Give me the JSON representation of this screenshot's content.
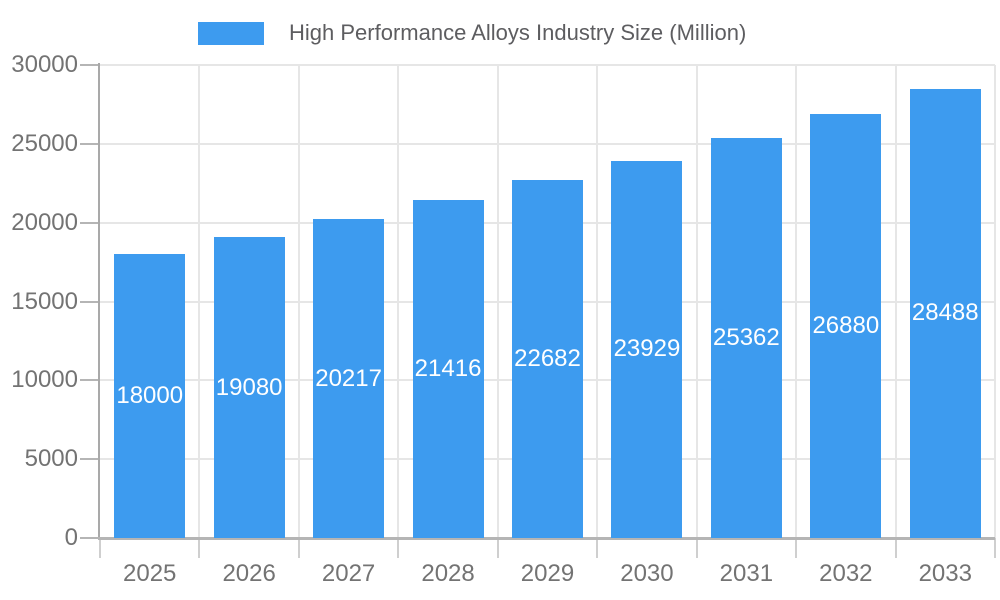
{
  "chart_data": {
    "type": "bar",
    "title": "High Performance Alloys Industry Size (Million)",
    "legend": [
      "High Performance Alloys Industry Size (Million)"
    ],
    "legend_position": "top",
    "categories": [
      "2025",
      "2026",
      "2027",
      "2028",
      "2029",
      "2030",
      "2031",
      "2032",
      "2033"
    ],
    "values": [
      18000,
      19080,
      20217,
      21416,
      22682,
      23929,
      25362,
      26880,
      28488
    ],
    "xlabel": "",
    "ylabel": "",
    "ylim": [
      0,
      30000
    ],
    "yticks": [
      0,
      5000,
      10000,
      15000,
      20000,
      25000,
      30000
    ],
    "grid": true,
    "data_labels": "inside-center"
  },
  "colors": {
    "bar": "#3d9bef",
    "grid": "#e6e6e6",
    "y_axis_line": "#a9a9a9",
    "x_axis_line": "#b5b5b5",
    "tick": "#cfcfcf",
    "axis_text": "#737373",
    "legend_text": "#5d5d60",
    "bar_label_text": "#ffffff",
    "background": "#ffffff"
  }
}
